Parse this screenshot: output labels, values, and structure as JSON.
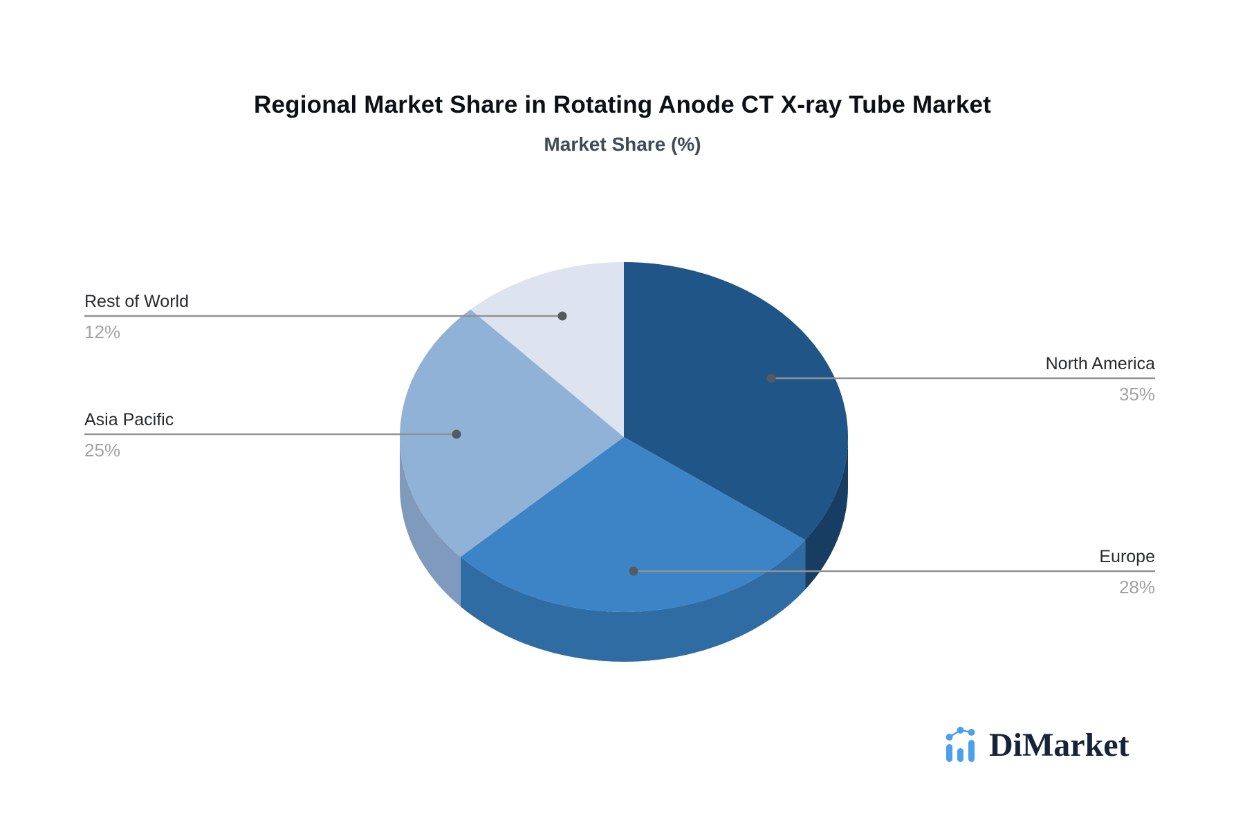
{
  "header": {
    "title": "Regional Market Share in Rotating Anode CT X-ray Tube Market",
    "subtitle": "Market Share (%)"
  },
  "chart_data": {
    "type": "pie",
    "title": "Regional Market Share in Rotating Anode CT X-ray Tube Market",
    "subtitle": "Market Share (%)",
    "unit": "%",
    "style": "3d-pie",
    "start_angle_deg": 0,
    "direction": "clockwise",
    "legend_position": "none",
    "slices": [
      {
        "label": "North America",
        "value": 35,
        "display": "35%",
        "color": "#1f5687",
        "side_color": "#173e62",
        "label_side": "right"
      },
      {
        "label": "Europe",
        "value": 28,
        "display": "28%",
        "color": "#3c84c6",
        "side_color": "#2e6ca3",
        "label_side": "right"
      },
      {
        "label": "Asia Pacific",
        "value": 25,
        "display": "25%",
        "color": "#90b2d7",
        "side_color": "#7f9abc",
        "label_side": "left"
      },
      {
        "label": "Rest of World",
        "value": 12,
        "display": "12%",
        "color": "#dde4ef",
        "side_color": "#c3cedd",
        "label_side": "left"
      }
    ],
    "label_name_color": "#282a2d",
    "label_value_color": "#a2a2a2",
    "leader_line_color": "#919191"
  },
  "branding": {
    "name": "DiMarket",
    "icon": "bar-chart-logo-icon",
    "icon_color": "#4aa0ee",
    "text_color": "#16233b"
  }
}
